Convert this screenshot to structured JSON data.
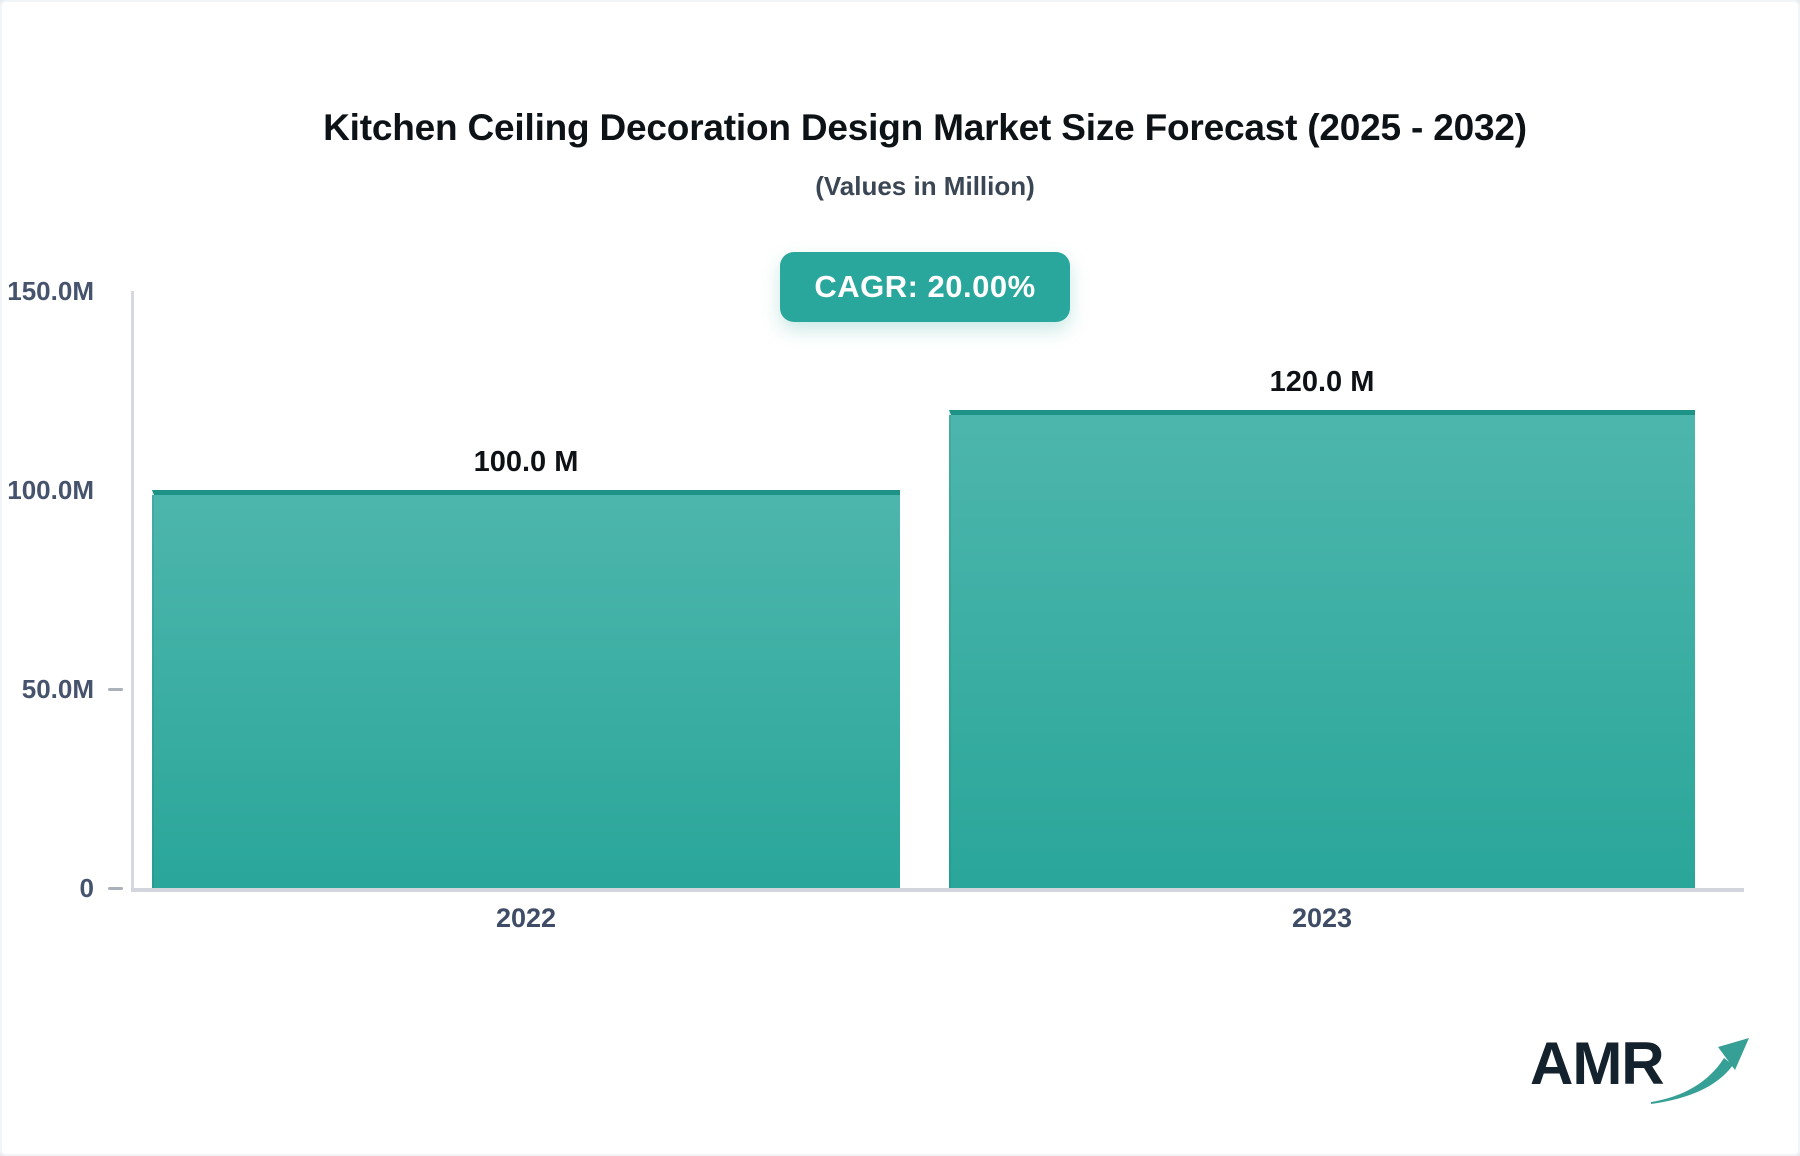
{
  "header": {
    "title": "Kitchen Ceiling Decoration Design Market Size Forecast (2025 - 2032)",
    "subtitle": "(Values in Million)",
    "cagr_badge": "CAGR: 20.00%"
  },
  "chart_data": {
    "type": "bar",
    "title": "Kitchen Ceiling Decoration Design Market Size Forecast (2025 - 2032)",
    "subtitle": "(Values in Million)",
    "cagr_percent": 20.0,
    "unit": "Million",
    "categories": [
      "2022",
      "2023"
    ],
    "values": [
      100.0,
      120.0
    ],
    "value_labels": [
      "100.0 M",
      "120.0 M"
    ],
    "ylim": [
      0,
      150
    ],
    "y_ticks": [
      {
        "label": "150.0M",
        "value": 150,
        "dash": false
      },
      {
        "label": "100.0M",
        "value": 100,
        "dash": false
      },
      {
        "label": "50.0M",
        "value": 50,
        "dash": true
      },
      {
        "label": "0",
        "value": 0,
        "dash": true
      }
    ],
    "grid": false,
    "legend": false,
    "bar_color_top": "#4db6ac",
    "bar_color_bottom": "#2aa69a",
    "bar_border_top": "#1d9286"
  },
  "branding": {
    "logo_text": "AMR",
    "logo_text_color": "#14222e",
    "logo_arrow_color": "#37a096"
  },
  "colors": {
    "axis_line": "#d5d8de",
    "baseline": "#d2d6dc",
    "tick_text": "#46536d",
    "title_text": "#0d1217",
    "subtitle_text": "#3a4654",
    "badge_bg": "#2aa79c",
    "badge_text": "#ffffff",
    "value_text": "#0e1216"
  }
}
